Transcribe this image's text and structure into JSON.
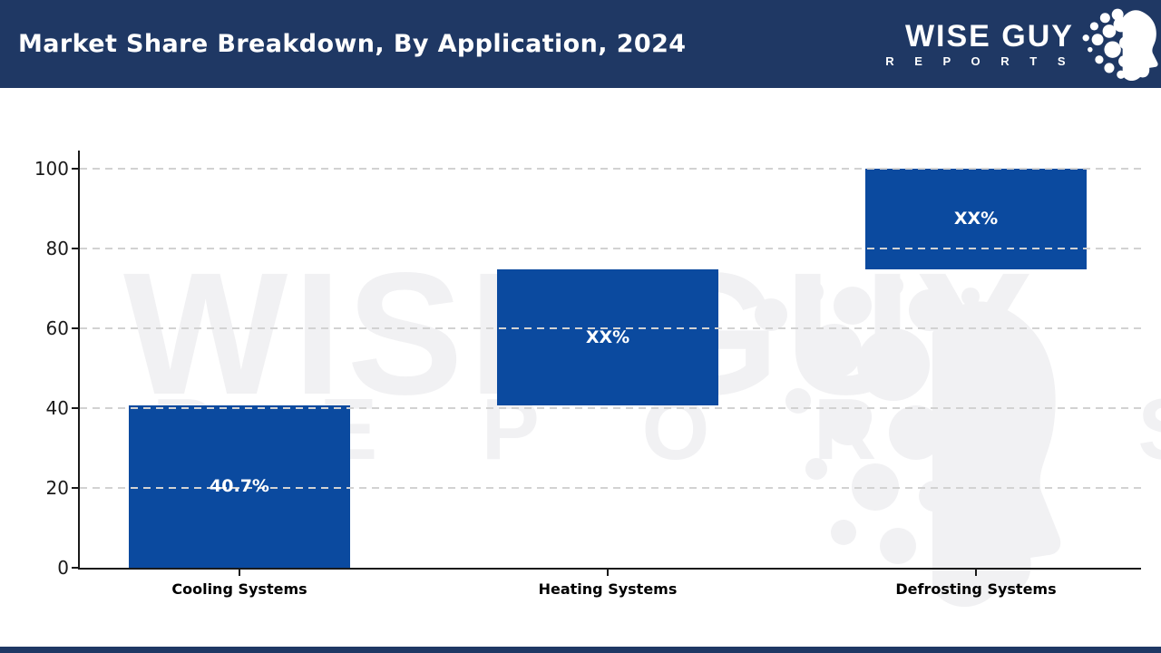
{
  "header": {
    "title": "Market Share Breakdown, By Application, 2024",
    "bg_color": "#1f3864",
    "logo": {
      "line1": "WISE GUY",
      "line2": "R E P O R T S"
    }
  },
  "chart_data": {
    "type": "bar",
    "variant": "waterfall-breakdown",
    "title": "Market Share Breakdown, By Application, 2024",
    "categories": [
      "Cooling Systems",
      "Heating Systems",
      "Defrosting Systems"
    ],
    "segments": [
      {
        "category": "Cooling Systems",
        "start": 0,
        "end": 40.7,
        "label": "40.7%",
        "estimated_height": 40.7
      },
      {
        "category": "Heating Systems",
        "start": 40.7,
        "end": 74.8,
        "label": "XX%",
        "estimated_height": 34.1
      },
      {
        "category": "Defrosting Systems",
        "start": 74.8,
        "end": 100,
        "label": "XX%",
        "estimated_height": 25.2
      }
    ],
    "yticks": [
      0,
      20,
      40,
      60,
      80,
      100
    ],
    "ylim": [
      0,
      100
    ],
    "xlabel": "",
    "ylabel": "",
    "grid": "horizontal-dashed",
    "legend": "none",
    "bar_color": "#0b4a9f",
    "bar_label_color": "#ffffff",
    "grid_color": "#d2d2d2",
    "axis_color": "#1a1a1a"
  },
  "watermark": {
    "line1": "WISE GUY",
    "line2": "R E P O R T S"
  }
}
